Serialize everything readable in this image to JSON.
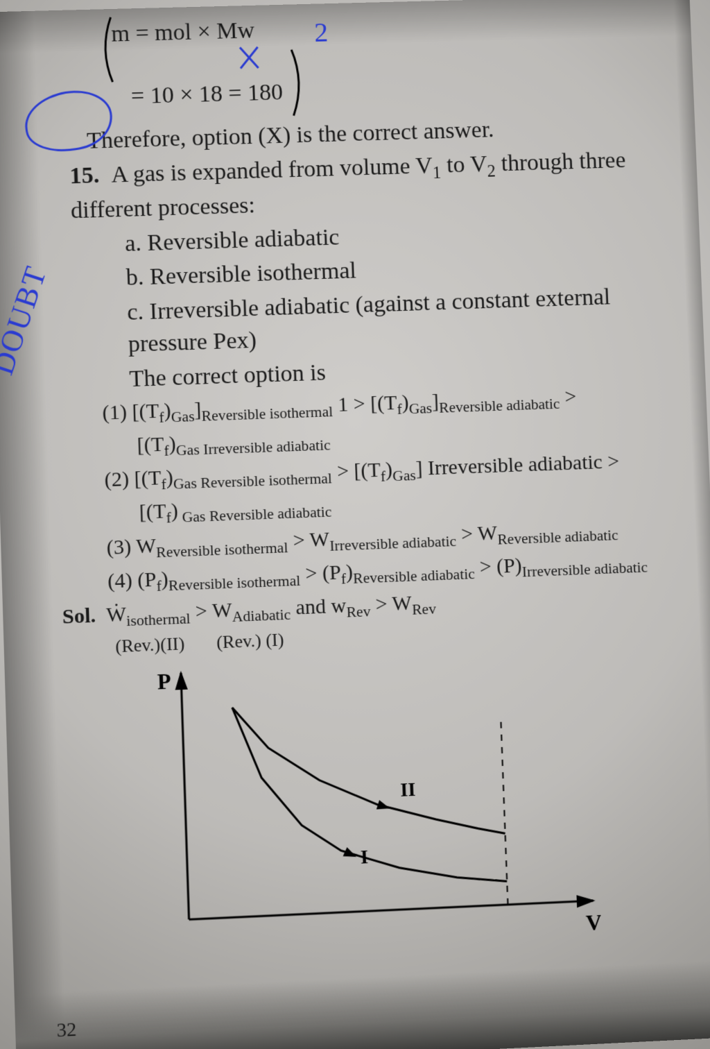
{
  "header_calc": {
    "paren_line1": "m = mol × Mw",
    "paren_line2": "= 10 × 18 = 180",
    "handwritten_two": "2",
    "therefore": "Therefore, option (X) is the correct answer."
  },
  "question": {
    "number": "15.",
    "stem_a": "A gas is expanded from volume V",
    "stem_b": "1",
    "stem_c": " to V",
    "stem_d": "2",
    "stem_e": " through three different processes:",
    "opt_a": "a. Reversible adiabatic",
    "opt_b": "b. Reversible isothermal",
    "opt_c": "c. Irreversible adiabatic (against a constant external pressure Pex)",
    "prompt": "The correct option is"
  },
  "options": {
    "o1_a": "(1)  [(T",
    "o1_b": "f",
    "o1_c": ")",
    "o1_gas": "Gas",
    "o1_d": "]",
    "o1_rev_iso": "Reversible isothermal",
    "o1_mid": " 1 > [(T",
    "o1_e": ")",
    "o1_rev_adia": "Reversible adiabatic",
    "o1_tail": " >",
    "o1_line2_pre": "[(T",
    "o1_line2_post": ")",
    "o1_irr": "Gas Irreversible adiabatic",
    "o2_a": "(2)  [(T",
    "o2_b": ")",
    "o2_gas_rev_iso": "Gas Reversible isothermal",
    "o2_mid": " > [(T",
    "o2_c": ")",
    "o2_gas2": "Gas",
    "o2_d": "]  Irreversible adiabatic  >",
    "o2_line2_pre": "[(T",
    "o2_line2_post": ")",
    "o2_gra": " Gas Reversible adiabatic",
    "o3": "(3)  W",
    "o3_ri": "Reversible isothermal",
    "o3_mid1": " > W",
    "o3_ia": "Irreversible adiabatic",
    "o3_mid2": " > W",
    "o3_ra": "Reversible adiabatic",
    "o4": "(4)  (P",
    "o4_b": ")",
    "o4_ri": "Reversible isothermal",
    "o4_m1": " > (P",
    "o4_c": ")",
    "o4_ra": "Reversible adiabatic",
    "o4_m2": " > (P)",
    "o4_ia": "Irreversible adiabatic"
  },
  "solution": {
    "sol_label": "Sol.",
    "line1_a": "Ẇ",
    "line1_iso": "isothermal",
    "line1_b": " > W",
    "line1_adia": "Adiabatic",
    "line1_c": " and w",
    "line1_rev1": "Rev",
    "line1_d": " > W",
    "line1_rev2": "Rev",
    "line2_a": "(Rev.)(II)",
    "line2_b": "(Rev.) (I)"
  },
  "plot": {
    "type": "line",
    "axis_x_label": "V",
    "axis_y_label": "P",
    "curve_I_label": "I",
    "curve_II_label": "II",
    "background_color": "transparent",
    "axis_color": "#000000",
    "curve_color": "#000000",
    "xmin": 0,
    "xmax": 10,
    "ymin": 0,
    "ymax": 10,
    "curve_I": [
      [
        1.3,
        8.5
      ],
      [
        2.0,
        5.6
      ],
      [
        3.0,
        3.6
      ],
      [
        4.0,
        2.5
      ],
      [
        5.5,
        1.7
      ],
      [
        7.0,
        1.2
      ],
      [
        8.3,
        0.95
      ]
    ],
    "curve_II": [
      [
        1.3,
        8.5
      ],
      [
        2.2,
        6.8
      ],
      [
        3.5,
        5.4
      ],
      [
        5.0,
        4.3
      ],
      [
        6.5,
        3.6
      ],
      [
        7.6,
        3.15
      ],
      [
        8.3,
        2.9
      ]
    ],
    "dashed_x": 8.3,
    "dashed_y_top": 7.6,
    "arrow_I": {
      "pt": [
        4.1,
        2.45
      ],
      "dir": [
        1,
        -0.5
      ]
    },
    "arrow_II": {
      "pt": [
        5.0,
        4.3
      ],
      "dir": [
        1,
        -0.35
      ]
    },
    "line_width": 3
  },
  "colors": {
    "text": "#1a1a1a",
    "ink_blue": "#2a3bd0"
  },
  "page_number": "32",
  "annotations": {
    "doubt_text": "DOUBT"
  }
}
